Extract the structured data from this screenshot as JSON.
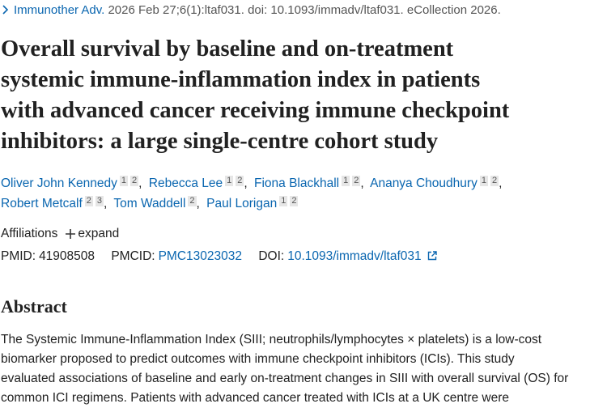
{
  "citation": {
    "journal": "Immunother Adv.",
    "details": "2026 Feb 27;6(1):ltaf031. doi: 10.1093/immadv/ltaf031. eCollection 2026."
  },
  "title_lines": [
    "Overall survival by baseline and on-treatment",
    "systemic immune-inflammation index in patients",
    "with advanced cancer receiving immune checkpoint",
    "inhibitors: a large single-centre cohort study"
  ],
  "authors": [
    {
      "name": "Oliver John Kennedy",
      "affiliations": [
        1,
        2
      ]
    },
    {
      "name": "Rebecca Lee",
      "affiliations": [
        1,
        2
      ]
    },
    {
      "name": "Fiona Blackhall",
      "affiliations": [
        1,
        2
      ]
    },
    {
      "name": "Ananya Choudhury",
      "affiliations": [
        1,
        2
      ]
    },
    {
      "name": "Robert Metcalf",
      "affiliations": [
        2,
        3
      ]
    },
    {
      "name": "Tom Waddell",
      "affiliations": [
        2
      ]
    },
    {
      "name": "Paul Lorigan",
      "affiliations": [
        1,
        2
      ]
    }
  ],
  "affiliations": {
    "label": "Affiliations",
    "toggle": "expand"
  },
  "identifiers": {
    "pmid_label": "PMID:",
    "pmid": "41908508",
    "pmcid_label": "PMCID:",
    "pmcid": "PMC13023032",
    "doi_label": "DOI:",
    "doi": "10.1093/immadv/ltaf031"
  },
  "abstract": {
    "heading": "Abstract",
    "lines": [
      "The Systemic Immune-Inflammation Index (SIII; neutrophils/lymphocytes × platelets) is a low-cost",
      "biomarker proposed to predict outcomes with immune checkpoint inhibitors (ICIs). This study",
      "evaluated associations of baseline and early on-treatment changes in SIII with overall survival (OS) for",
      "common ICI regimens. Patients with advanced cancer treated with ICIs at a UK centre were"
    ]
  }
}
